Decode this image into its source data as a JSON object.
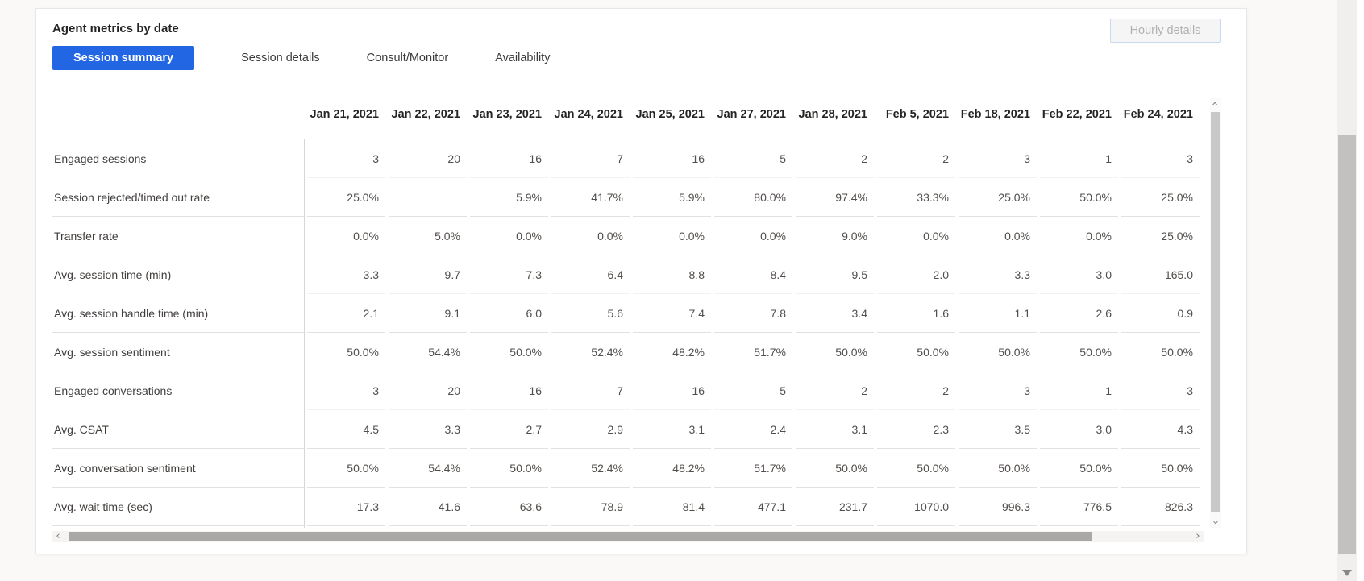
{
  "header": {
    "title": "Agent metrics by date",
    "hourly_button_label": "Hourly details"
  },
  "tabs": [
    {
      "label": "Session summary",
      "active": true
    },
    {
      "label": "Session details",
      "active": false
    },
    {
      "label": "Consult/Monitor",
      "active": false
    },
    {
      "label": "Availability",
      "active": false
    }
  ],
  "chart_data": {
    "type": "table",
    "columns": [
      "Jan 21, 2021",
      "Jan 22, 2021",
      "Jan 23, 2021",
      "Jan 24, 2021",
      "Jan 25, 2021",
      "Jan 27, 2021",
      "Jan 28, 2021",
      "Feb 5, 2021",
      "Feb 18, 2021",
      "Feb 22, 2021",
      "Feb 24, 2021"
    ],
    "rows": [
      {
        "label": "Engaged sessions",
        "values": [
          "3",
          "20",
          "16",
          "7",
          "16",
          "5",
          "2",
          "2",
          "3",
          "1",
          "3"
        ]
      },
      {
        "label": "Session rejected/timed out rate",
        "values": [
          "25.0%",
          "",
          "5.9%",
          "41.7%",
          "5.9%",
          "80.0%",
          "97.4%",
          "33.3%",
          "25.0%",
          "50.0%",
          "25.0%"
        ]
      },
      {
        "label": "Transfer rate",
        "values": [
          "0.0%",
          "5.0%",
          "0.0%",
          "0.0%",
          "0.0%",
          "0.0%",
          "9.0%",
          "0.0%",
          "0.0%",
          "0.0%",
          "25.0%"
        ]
      },
      {
        "label": "Avg. session time (min)",
        "values": [
          "3.3",
          "9.7",
          "7.3",
          "6.4",
          "8.8",
          "8.4",
          "9.5",
          "2.0",
          "3.3",
          "3.0",
          "165.0"
        ]
      },
      {
        "label": "Avg. session handle time (min)",
        "values": [
          "2.1",
          "9.1",
          "6.0",
          "5.6",
          "7.4",
          "7.8",
          "3.4",
          "1.6",
          "1.1",
          "2.6",
          "0.9"
        ]
      },
      {
        "label": "Avg. session sentiment",
        "values": [
          "50.0%",
          "54.4%",
          "50.0%",
          "52.4%",
          "48.2%",
          "51.7%",
          "50.0%",
          "50.0%",
          "50.0%",
          "50.0%",
          "50.0%"
        ]
      },
      {
        "label": "Engaged conversations",
        "values": [
          "3",
          "20",
          "16",
          "7",
          "16",
          "5",
          "2",
          "2",
          "3",
          "1",
          "3"
        ]
      },
      {
        "label": "Avg. CSAT",
        "values": [
          "4.5",
          "3.3",
          "2.7",
          "2.9",
          "3.1",
          "2.4",
          "3.1",
          "2.3",
          "3.5",
          "3.0",
          "4.3"
        ]
      },
      {
        "label": "Avg. conversation sentiment",
        "values": [
          "50.0%",
          "54.4%",
          "50.0%",
          "52.4%",
          "48.2%",
          "51.7%",
          "50.0%",
          "50.0%",
          "50.0%",
          "50.0%",
          "50.0%"
        ]
      },
      {
        "label": "Avg. wait time (sec)",
        "values": [
          "17.3",
          "41.6",
          "63.6",
          "78.9",
          "81.4",
          "477.1",
          "231.7",
          "1070.0",
          "996.3",
          "776.5",
          "826.3"
        ]
      }
    ]
  },
  "scrollbars": {
    "left": "‹",
    "right": "›",
    "up": "›",
    "down": "›"
  },
  "colors": {
    "accent": "#2266e3",
    "header_border": "#8d8b89",
    "row_border": "#e2e1e0",
    "faint_border": "#f3f2f1",
    "hscroll_thumb": "#a9a8a7",
    "page_thumb": "#c2c1c0",
    "disabled_text": "#b3b1af"
  }
}
